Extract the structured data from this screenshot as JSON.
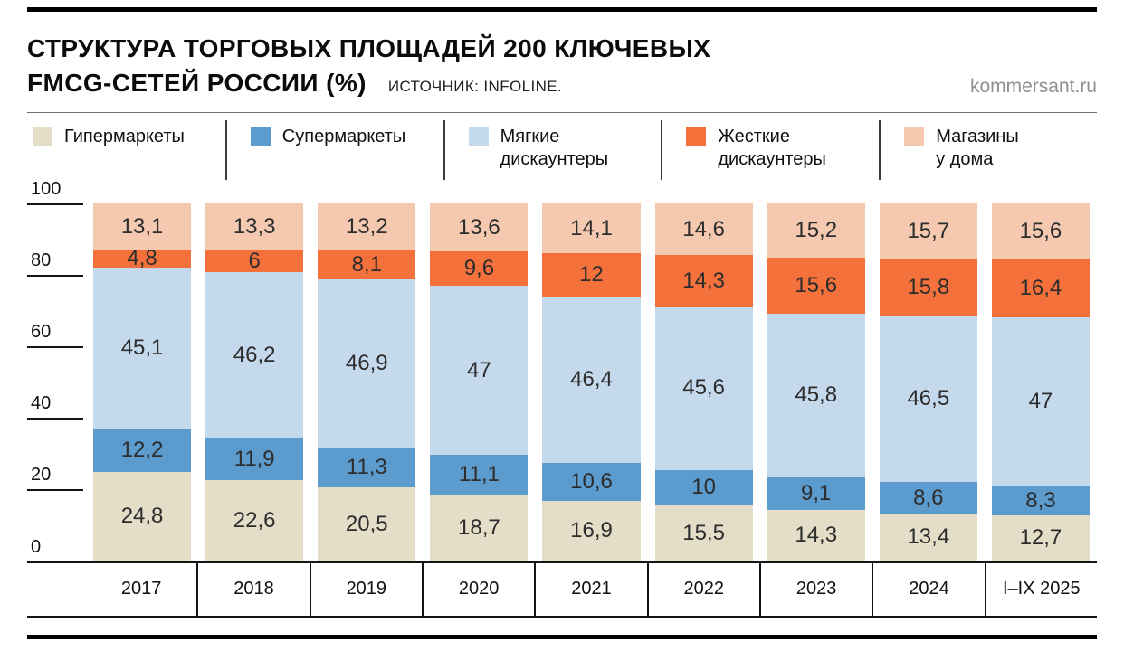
{
  "header": {
    "title_line1": "СТРУКТУРА ТОРГОВЫХ ПЛОЩАДЕЙ 200 КЛЮЧЕВЫХ",
    "title_line2": "FMCG-СЕТЕЙ РОССИИ (%)",
    "source": "ИСТОЧНИК: INFOLINE.",
    "site": "kommersant.ru"
  },
  "colors": {
    "hypermarkets": "#e4ddc8",
    "supermarkets": "#5b9bce",
    "soft-discounters": "#c5d9ec",
    "hard-discounters": "#f4713b",
    "convenience-stores": "#f5c9b0"
  },
  "legend": {
    "items": [
      {
        "label": "Гипермаркеты",
        "color_key": "hypermarkets"
      },
      {
        "label": "Супермаркеты",
        "color_key": "supermarkets"
      },
      {
        "label": "Мягкие\nдискаунтеры",
        "color_key": "soft-discounters"
      },
      {
        "label": "Жесткие\nдискаунтеры",
        "color_key": "hard-discounters"
      },
      {
        "label": "Магазины\nу дома",
        "color_key": "convenience-stores"
      }
    ]
  },
  "chart_data": {
    "type": "bar",
    "stacked": true,
    "title": "СТРУКТУРА ТОРГОВЫХ ПЛОЩАДЕЙ 200 КЛЮЧЕВЫХ FMCG-СЕТЕЙ РОССИИ (%)",
    "source": "ИСТОЧНИК: INFOLINE.",
    "categories": [
      "2017",
      "2018",
      "2019",
      "2020",
      "2021",
      "2022",
      "2023",
      "2024",
      "I–IX 2025"
    ],
    "series": [
      {
        "name": "Гипермаркеты",
        "color_key": "hypermarkets",
        "values": [
          24.8,
          22.6,
          20.5,
          18.7,
          16.9,
          15.5,
          14.3,
          13.4,
          12.7
        ]
      },
      {
        "name": "Супермаркеты",
        "color_key": "supermarkets",
        "values": [
          12.2,
          11.9,
          11.3,
          11.1,
          10.6,
          10,
          9.1,
          8.6,
          8.3
        ]
      },
      {
        "name": "Мягкие дискаунтеры",
        "color_key": "soft-discounters",
        "values": [
          45.1,
          46.2,
          46.9,
          47,
          46.4,
          45.6,
          45.8,
          46.5,
          47
        ]
      },
      {
        "name": "Жесткие дискаунтеры",
        "color_key": "hard-discounters",
        "values": [
          4.8,
          6,
          8.1,
          9.6,
          12,
          14.3,
          15.6,
          15.8,
          16.4
        ]
      },
      {
        "name": "Магазины у дома",
        "color_key": "convenience-stores",
        "values": [
          13.1,
          13.3,
          13.2,
          13.6,
          14.1,
          14.6,
          15.2,
          15.7,
          15.6
        ]
      }
    ],
    "y_ticks": [
      0,
      20,
      40,
      60,
      80,
      100
    ],
    "ylim": [
      0,
      100
    ],
    "legend_position": "top",
    "grid": false,
    "value_label_format": "comma-decimal"
  }
}
